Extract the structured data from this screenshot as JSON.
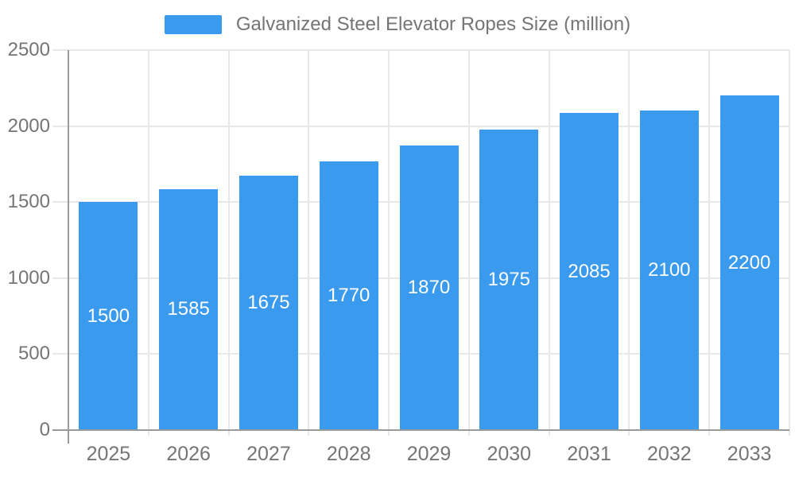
{
  "chart_data": {
    "type": "bar",
    "legend": "Galvanized Steel Elevator Ropes Size (million)",
    "categories": [
      "2025",
      "2026",
      "2027",
      "2028",
      "2029",
      "2030",
      "2031",
      "2032",
      "2033"
    ],
    "values": [
      1500,
      1585,
      1675,
      1770,
      1870,
      1975,
      2085,
      2100,
      2200
    ],
    "xlabel": "",
    "ylabel": "",
    "ylim": [
      0,
      2500
    ],
    "ytick_step": 500,
    "ytick_labels": [
      "0",
      "500",
      "1000",
      "1500",
      "2000",
      "2500"
    ],
    "grid": true,
    "legend_position": "top-center",
    "value_labels_position": "inside-center",
    "colors": {
      "bar": "#3a9aed",
      "value_label": "#ffffff",
      "axis_text": "#757575",
      "axis_line": "#9b9b9b",
      "gridline": "#e8e8e8",
      "background": "#ffffff"
    }
  }
}
